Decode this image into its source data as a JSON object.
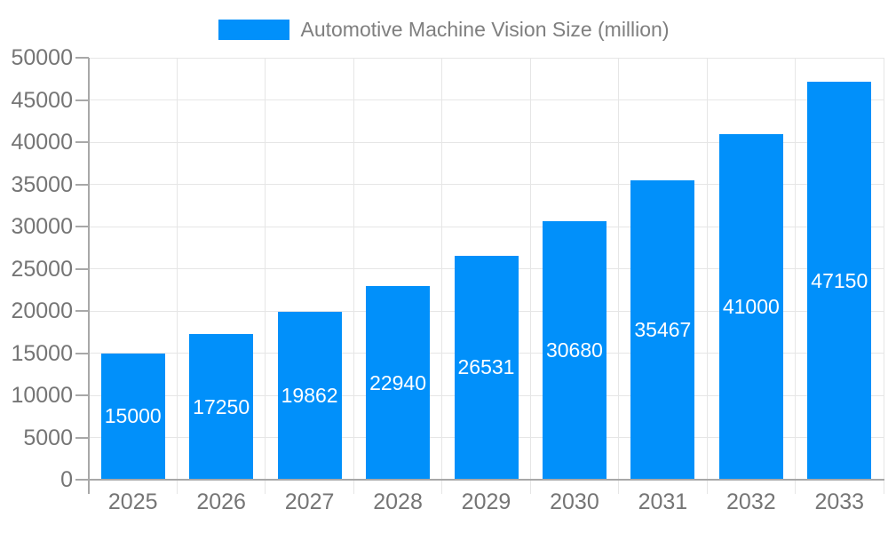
{
  "chart_data": {
    "type": "bar",
    "title": "Automotive Machine Vision Size (million)",
    "xlabel": "",
    "ylabel": "",
    "categories": [
      "2025",
      "2026",
      "2027",
      "2028",
      "2029",
      "2030",
      "2031",
      "2032",
      "2033"
    ],
    "series": [
      {
        "name": "Automotive Machine Vision Size (million)",
        "values": [
          15000,
          17250,
          19862,
          22940,
          26531,
          30680,
          35467,
          41000,
          47150
        ]
      }
    ],
    "ylim": [
      0,
      50000
    ],
    "ytick_step": 5000,
    "ytick_labels": [
      "0",
      "5000",
      "10000",
      "15000",
      "20000",
      "25000",
      "30000",
      "35000",
      "40000",
      "45000",
      "50000"
    ],
    "grid": true,
    "legend_position": "top-center",
    "value_labels_position": "inside-center"
  },
  "colors": {
    "bar": "#0190FA",
    "bar_label_text": "#FFFFFF",
    "axis_text": "#757575",
    "legend_text": "#7F7F7F",
    "gridline": "#E6E6E6",
    "axis_line": "#A8A8A8",
    "background": "#FFFFFF"
  }
}
